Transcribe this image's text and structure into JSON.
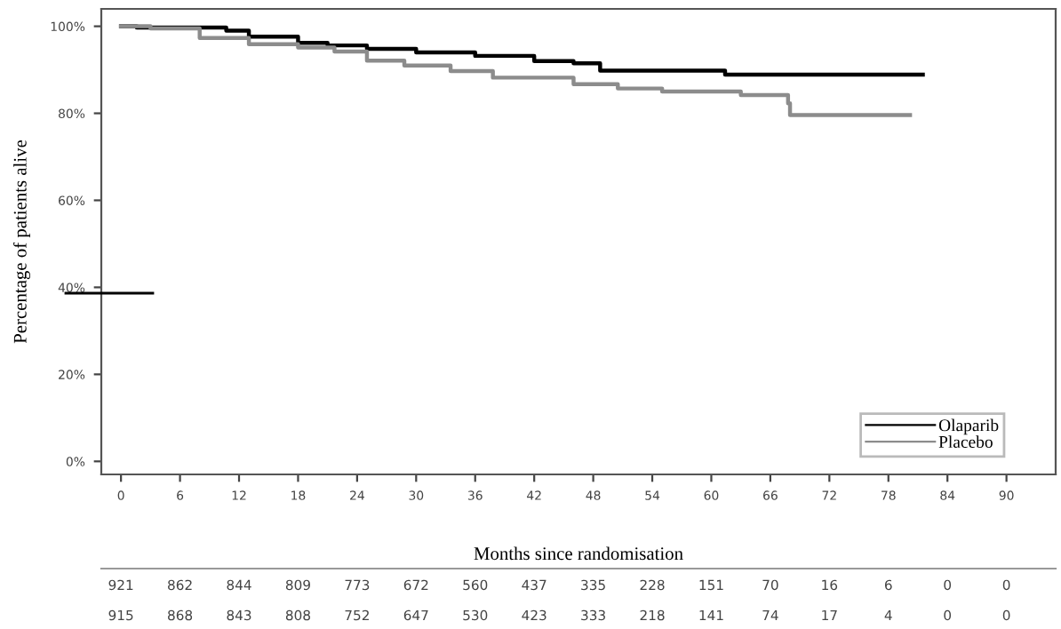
{
  "chart_data": {
    "type": "step",
    "xlabel": "Months since randomisation",
    "ylabel": "Percentage of patients alive",
    "xlim": [
      -2,
      95
    ],
    "ylim": [
      -3,
      104
    ],
    "xticks": [
      0,
      6,
      12,
      18,
      24,
      30,
      36,
      42,
      48,
      54,
      60,
      66,
      72,
      78,
      84,
      90
    ],
    "yticks": [
      {
        "value": 0,
        "label": "0%"
      },
      {
        "value": 20,
        "label": "20%"
      },
      {
        "value": 40,
        "label": "40%"
      },
      {
        "value": 60,
        "label": "60%"
      },
      {
        "value": 80,
        "label": "80%"
      },
      {
        "value": 100,
        "label": "100%"
      }
    ],
    "series": [
      {
        "name": "Olaparib",
        "color": "#000000",
        "x": [
          0,
          1.6,
          10.7,
          13,
          18,
          21,
          25,
          30,
          36,
          42,
          46,
          48.7,
          61.4,
          81.5
        ],
        "values": [
          100,
          99.7,
          99,
          97.6,
          96.2,
          95.6,
          94.8,
          94,
          93.2,
          92,
          91.5,
          89.8,
          88.9,
          88.9
        ]
      },
      {
        "name": "Placebo",
        "color": "#8c8c8c",
        "x": [
          0,
          3,
          8,
          13,
          18,
          21.7,
          25,
          28.8,
          33.5,
          37.8,
          46,
          50.5,
          55,
          63,
          67.8,
          68,
          80.2
        ],
        "values": [
          100,
          99.5,
          97.3,
          95.9,
          95.1,
          94.2,
          92.1,
          91,
          89.7,
          88.2,
          86.7,
          85.7,
          85,
          84.2,
          82.3,
          79.6,
          79.6
        ]
      }
    ],
    "legend": "bottom right",
    "grid": false,
    "line_style": "solid",
    "annotations": [
      "921",
      "862",
      "844",
      "809",
      "773",
      "672",
      "560",
      "437",
      "335",
      "228",
      "151",
      "70",
      "16",
      "6",
      "0",
      "0",
      "915",
      "868",
      "843",
      "808",
      "752",
      "647",
      "530",
      "423",
      "333",
      "218",
      "141",
      "74",
      "17",
      "4",
      "0",
      "0"
    ]
  }
}
